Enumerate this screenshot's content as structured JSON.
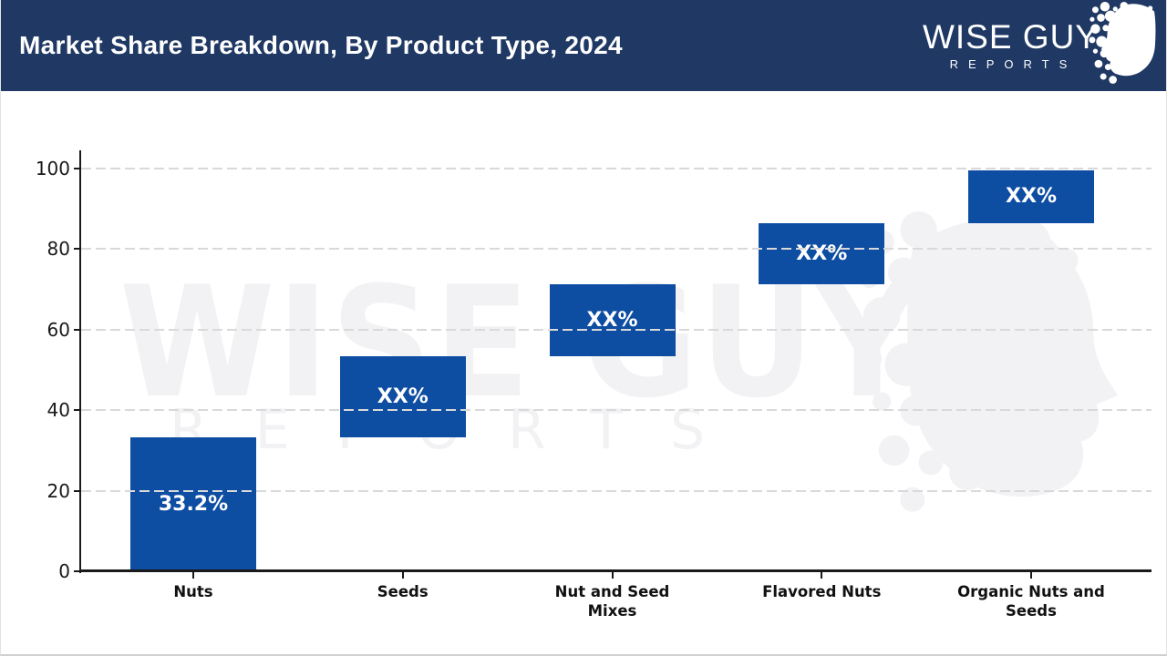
{
  "header": {
    "bg_color": "#1f3864",
    "title": "Market Share Breakdown, By Product Type, 2024",
    "logo": {
      "name": "WISE GUY",
      "subtitle": "REPORTS"
    }
  },
  "watermark": {
    "text_line1": "WISE GUY",
    "text_line2": "REPORTS"
  },
  "chart_data": {
    "type": "bar",
    "variant": "waterfall",
    "title": "Market Share Breakdown, By Product Type, 2024",
    "categories": [
      "Nuts",
      "Seeds",
      "Nut and Seed Mixes",
      "Flavored Nuts",
      "Organic Nuts and Seeds"
    ],
    "segments": [
      {
        "category": "Nuts",
        "start": 0,
        "end": 33.2,
        "label": "33.2%"
      },
      {
        "category": "Seeds",
        "start": 33.2,
        "end": 53.5,
        "label": "XX%"
      },
      {
        "category": "Nut and Seed Mixes",
        "start": 53.5,
        "end": 71.2,
        "label": "XX%"
      },
      {
        "category": "Flavored Nuts",
        "start": 71.2,
        "end": 86.5,
        "label": "XX%"
      },
      {
        "category": "Organic Nuts and Seeds",
        "start": 86.5,
        "end": 99.6,
        "label": "XX%"
      }
    ],
    "xlabel": "",
    "ylabel": "",
    "yticks": [
      0,
      20,
      40,
      60,
      80,
      100
    ],
    "ylim": [
      0,
      104.5
    ],
    "grid": "horizontal-dashed",
    "legend": "none",
    "colors": {
      "bar": "#0d4da2",
      "bar_label": "#ffffff",
      "gridline": "#d9d9d9",
      "axis": "#1a1a1a",
      "tick_label": "#1a1a1a"
    }
  }
}
